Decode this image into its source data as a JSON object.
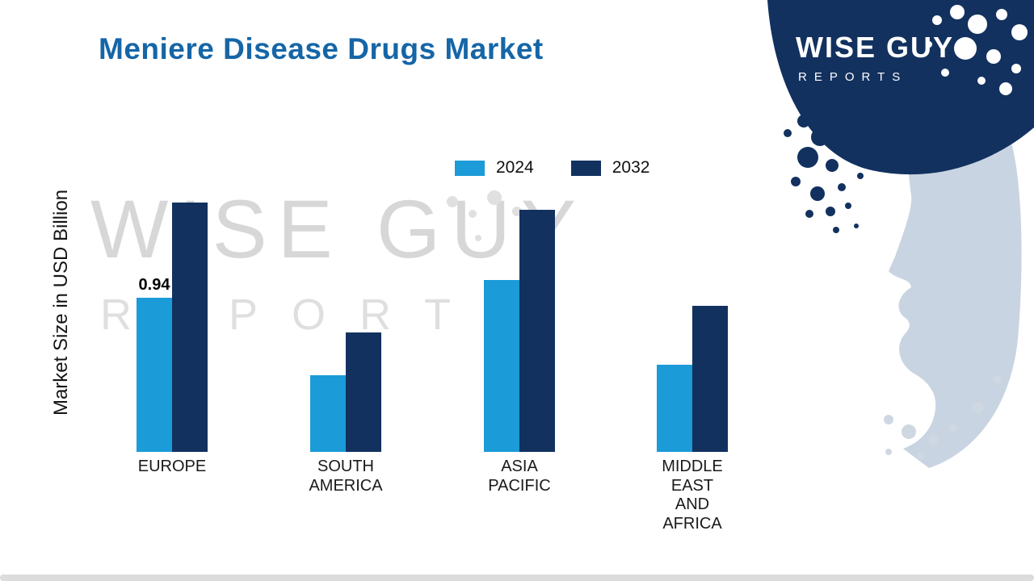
{
  "title": "Meniere Disease Drugs Market",
  "ylabel": "Market Size in USD Billion",
  "logo": {
    "name": "WISE GUY",
    "sub": "REPORTS"
  },
  "watermark": {
    "name": "WISE GUY",
    "sub": "REPORTS"
  },
  "colors": {
    "title_blue": "#1566a7",
    "series_2024": "#1b9bd8",
    "series_2032": "#12315f",
    "brand_navy": "#12315f",
    "watermark_gray": "#d7d7d7"
  },
  "chart_data": {
    "type": "bar",
    "title": "Meniere Disease Drugs Market",
    "xlabel": "",
    "ylabel": "Market Size in USD Billion",
    "unit": "USD Billion",
    "grid": false,
    "legend_position": "top",
    "ylim": [
      0,
      1.6
    ],
    "categories": [
      "EUROPE",
      "SOUTH AMERICA",
      "ASIA PACIFIC",
      "MIDDLE EAST AND AFRICA"
    ],
    "categories_display": [
      "EUROPE",
      "SOUTH\nAMERICA",
      "ASIA\nPACIFIC",
      "MIDDLE\nEAST\nAND\nAFRICA"
    ],
    "series": [
      {
        "name": "2024",
        "color": "#1b9bd8",
        "values": [
          0.94,
          0.47,
          1.05,
          0.53
        ],
        "labels": [
          "0.94",
          "",
          "",
          ""
        ]
      },
      {
        "name": "2032",
        "color": "#12315f",
        "values": [
          1.52,
          0.73,
          1.48,
          0.89
        ],
        "labels": [
          "",
          "",
          "",
          ""
        ]
      }
    ]
  }
}
